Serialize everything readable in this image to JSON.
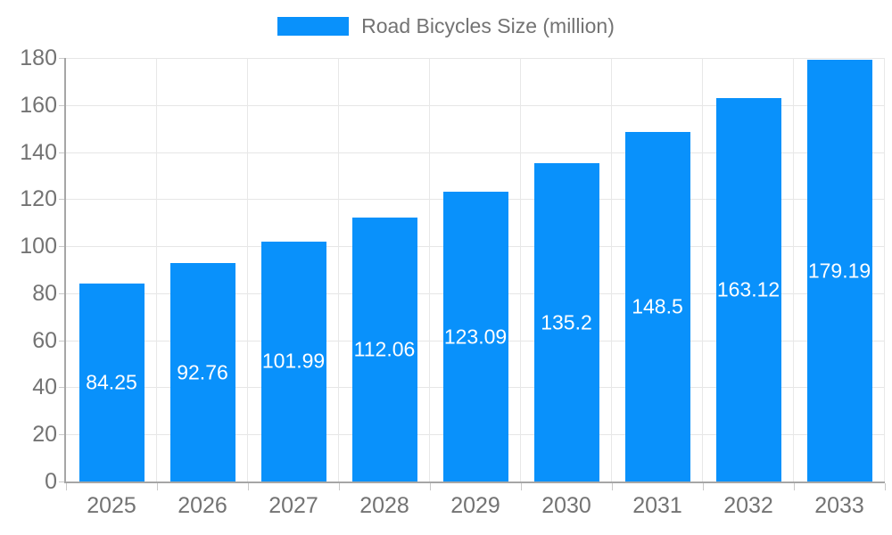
{
  "legend": {
    "label": "Road Bicycles Size (million)"
  },
  "chart_data": {
    "type": "bar",
    "title": "Road Bicycles Size (million)",
    "categories": [
      "2025",
      "2026",
      "2027",
      "2028",
      "2029",
      "2030",
      "2031",
      "2032",
      "2033"
    ],
    "values": [
      84.25,
      92.76,
      101.99,
      112.06,
      123.09,
      135.2,
      148.5,
      163.12,
      179.19
    ],
    "xlabel": "",
    "ylabel": "",
    "ylim": [
      0,
      180
    ],
    "ytick_step": 20,
    "grid": true,
    "legend_position": "top",
    "colors": {
      "bar": "#0991fb",
      "bar_value_label": "#ffffff",
      "axis_line": "#a6a6a6",
      "gridline": "#e6e6e6",
      "axis_text": "#737373"
    }
  }
}
